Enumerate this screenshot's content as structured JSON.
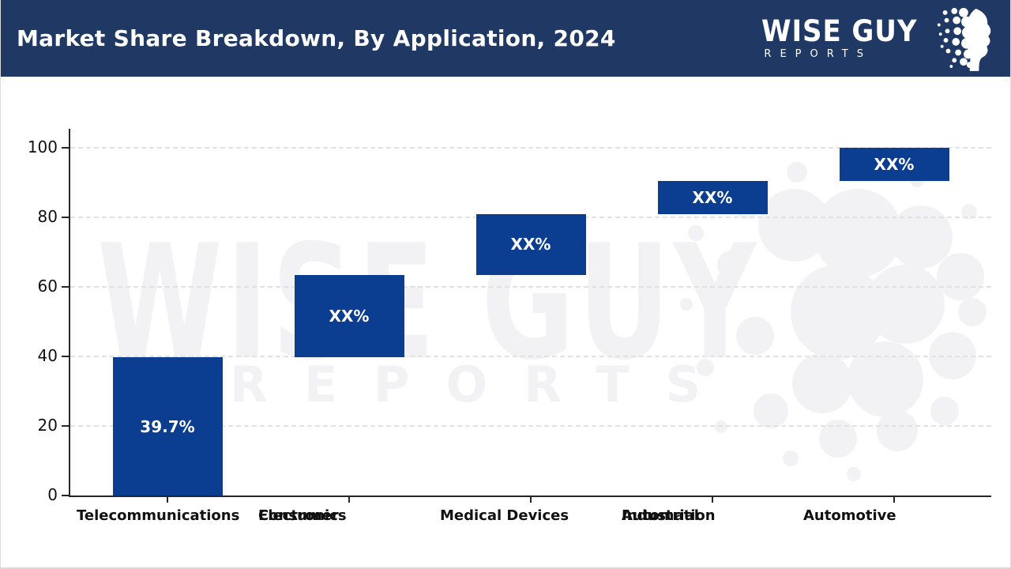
{
  "header": {
    "title": "Market Share Breakdown, By Application, 2024",
    "logo": {
      "wordmark": "WISE GUY",
      "subtext": "REPORTS"
    }
  },
  "watermark": {
    "wordmark": "WISE GUY",
    "subtext": "REPORTS"
  },
  "colors": {
    "header_bg": "#1f3864",
    "header_text": "#ffffff",
    "bar": "#0b3d91",
    "bar_label": "#ffffff",
    "axis": "#262626",
    "tick_label": "#111111",
    "gridline": "#e2e2e2",
    "watermark": "#f2f2f4",
    "page_border": "#d9d9d9"
  },
  "chart_data": {
    "type": "bar",
    "subtype": "floating-waterfall",
    "title": "Market Share Breakdown, By Application, 2024",
    "categories": [
      "Telecommunications",
      "Consumer Electronics",
      "Medical Devices",
      "Industrial Automation",
      "Automotive"
    ],
    "categories_wrapped": [
      [
        "Telecommunications"
      ],
      [
        "Consumer",
        "Electronics"
      ],
      [
        "Medical Devices"
      ],
      [
        "Industrial",
        "Automation"
      ],
      [
        "Automotive"
      ]
    ],
    "bars": [
      {
        "category": "Telecommunications",
        "start": 0,
        "end": 39.7,
        "label": "39.7%"
      },
      {
        "category": "Consumer Electronics",
        "start": 39.7,
        "end": 63.5,
        "label": "XX%"
      },
      {
        "category": "Medical Devices",
        "start": 63.5,
        "end": 81.0,
        "label": "XX%"
      },
      {
        "category": "Industrial Automation",
        "start": 81.0,
        "end": 90.5,
        "label": "XX%"
      },
      {
        "category": "Automotive",
        "start": 90.5,
        "end": 100.0,
        "label": "XX%"
      }
    ],
    "xlabel": "",
    "ylabel": "",
    "yticks": [
      0,
      20,
      40,
      60,
      80,
      100
    ],
    "ylim": [
      0,
      105
    ],
    "grid": {
      "axis": "y",
      "style": "dashed"
    },
    "legend": "none"
  }
}
